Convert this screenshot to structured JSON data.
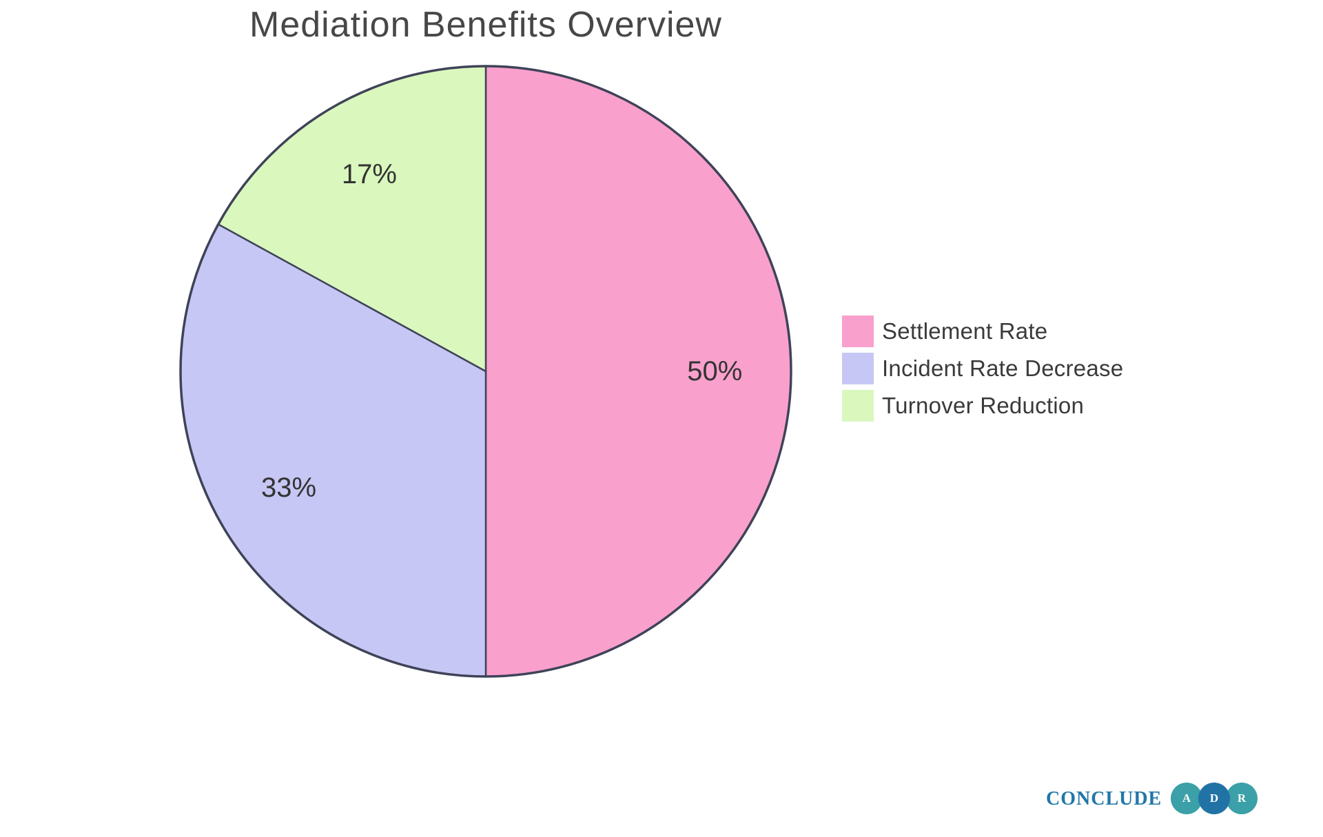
{
  "title": "Mediation Benefits Overview",
  "chart_data": {
    "type": "pie",
    "title": "Mediation Benefits Overview",
    "labels": [
      "Settlement Rate",
      "Incident Rate Decrease",
      "Turnover Reduction"
    ],
    "values": [
      50,
      33,
      17
    ],
    "value_labels": [
      "50%",
      "33%",
      "17%"
    ],
    "colors": [
      "#FAA0CD",
      "#C7C7F5",
      "#DAF7BE"
    ],
    "outline_color": "#3F4358",
    "start_angle": "12 o'clock",
    "direction": "clockwise",
    "legend_position": "right",
    "labels_inside": true
  },
  "legend": {
    "items": [
      {
        "label": "Settlement Rate",
        "color": "#FAA0CD"
      },
      {
        "label": "Incident Rate Decrease",
        "color": "#C7C7F5"
      },
      {
        "label": "Turnover Reduction",
        "color": "#DAF7BE"
      }
    ]
  },
  "branding": {
    "wordmark": "CONCLUDE",
    "wordmark_color": "#2077A8",
    "badges": [
      {
        "letter": "A",
        "color": "#3BA0A7"
      },
      {
        "letter": "D",
        "color": "#2173A6"
      },
      {
        "letter": "R",
        "color": "#3BA0A7"
      }
    ]
  }
}
